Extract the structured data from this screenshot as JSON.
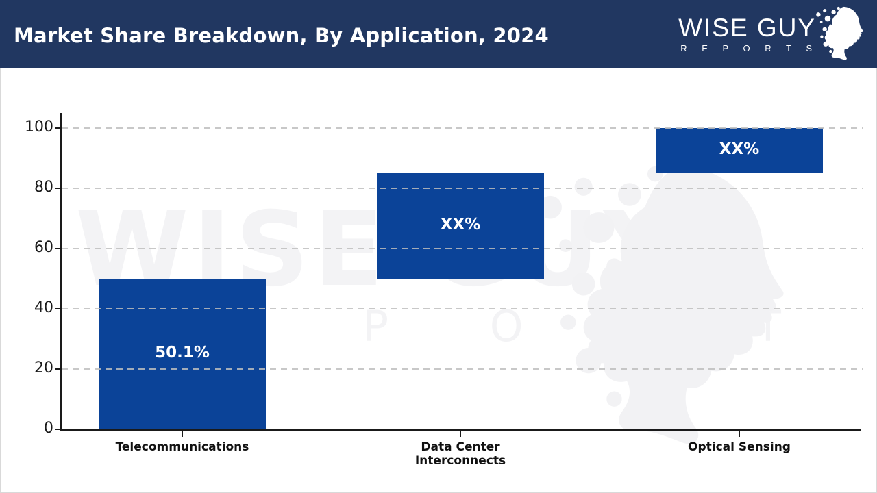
{
  "header": {
    "title": "Market Share Breakdown, By Application, 2024",
    "logo": {
      "line1": "WISE GUY",
      "line2": "R E P O R T S"
    }
  },
  "watermark": {
    "line1": "WISE GUY",
    "line2": "R E P O R T S"
  },
  "colors": {
    "header_bg": "#213761",
    "bar": "#0b4398",
    "grid": "#c6c6c6",
    "axis": "#1a1a1a",
    "watermark": "#f3f3f5",
    "bar_label_text": "#ffffff"
  },
  "chart_data": {
    "type": "bar",
    "subtype": "stacked-waterfall-percent",
    "title": "Market Share Breakdown, By Application, 2024",
    "categories": [
      "Telecommunications",
      "Data Center\nInterconnects",
      "Optical Sensing"
    ],
    "segments": [
      {
        "category": "Telecommunications",
        "start": 0,
        "end": 50.1,
        "label": "50.1%"
      },
      {
        "category": "Data Center Interconnects",
        "start": 50.1,
        "end": 84.9,
        "label": "XX%"
      },
      {
        "category": "Optical Sensing",
        "start": 84.9,
        "end": 100,
        "label": "XX%"
      }
    ],
    "yticks": [
      0,
      20,
      40,
      60,
      80,
      100
    ],
    "ylim": [
      0,
      105
    ],
    "xlabel": "",
    "ylabel": "",
    "grid": "horizontal-dashed-above-bars",
    "legend": "none"
  }
}
